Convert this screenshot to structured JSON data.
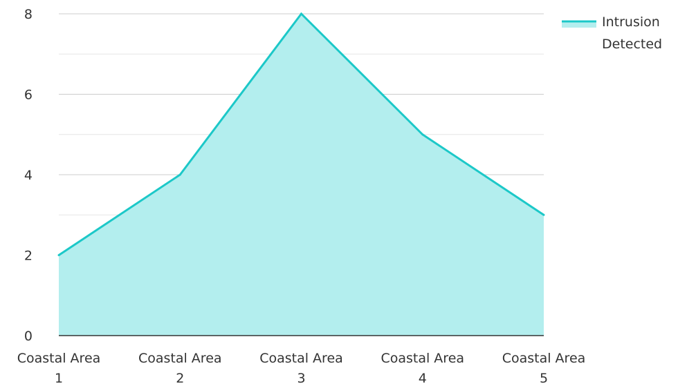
{
  "chart_data": {
    "type": "area",
    "categories": [
      "Coastal Area 1",
      "Coastal Area 2",
      "Coastal Area 3",
      "Coastal Area 4",
      "Coastal Area 5"
    ],
    "category_lines": [
      [
        "Coastal Area",
        "1"
      ],
      [
        "Coastal Area",
        "2"
      ],
      [
        "Coastal Area",
        "3"
      ],
      [
        "Coastal Area",
        "4"
      ],
      [
        "Coastal Area",
        "5"
      ]
    ],
    "series": [
      {
        "name": "Intrusion Detected",
        "name_lines": [
          "Intrusion",
          "Detected"
        ],
        "values": [
          2,
          4,
          8,
          5,
          3
        ],
        "line_color": "#1cc8c8",
        "fill_color": "#b3eeee"
      }
    ],
    "ylim": [
      0,
      8
    ],
    "y_ticks": [
      0,
      2,
      4,
      6,
      8
    ],
    "y_tick_labels": [
      "0",
      "2",
      "4",
      "6",
      "8"
    ],
    "y_minor_ticks": [
      1,
      3,
      5,
      7
    ],
    "grid": true,
    "legend_position": "top-right",
    "title": "",
    "xlabel": "",
    "ylabel": ""
  }
}
